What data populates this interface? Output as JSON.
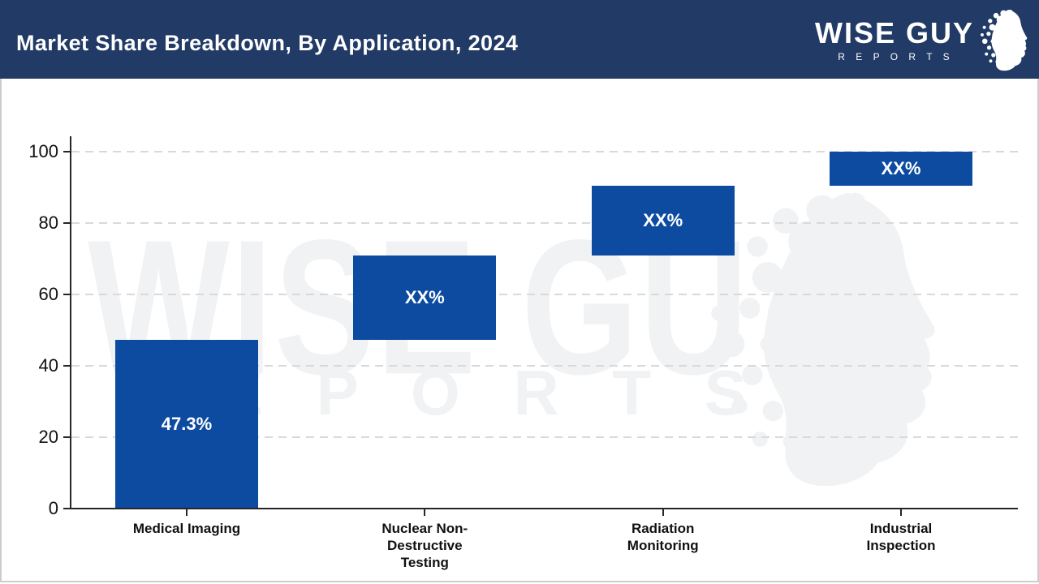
{
  "header": {
    "title": "Market Share Breakdown, By Application, 2024",
    "logo": {
      "wordmark": "WISE GUY",
      "subtitle": "R E P O R T S"
    }
  },
  "watermark": {
    "line1": "WISE GU",
    "line2": "R E P O R T S"
  },
  "colors": {
    "header_bg": "#213a66",
    "bar_blue": "#0d4ba0",
    "bar_label_white": "#ffffff",
    "grid_gray": "#d9d9d9",
    "axis_black": "#262626",
    "tick_text_black": "#111111",
    "watermark_gray": "#f1f2f4"
  },
  "chart_data": {
    "type": "bar",
    "subtype": "waterfall",
    "title": "Market Share Breakdown, By Application, 2024",
    "categories": [
      "Medical Imaging",
      "Nuclear Non-Destructive Testing",
      "Radiation Monitoring",
      "Industrial Inspection"
    ],
    "category_lines": [
      [
        "Medical Imaging"
      ],
      [
        "Nuclear Non-",
        "Destructive",
        "Testing"
      ],
      [
        "Radiation",
        "Monitoring"
      ],
      [
        "Industrial",
        "Inspection"
      ]
    ],
    "series": [
      {
        "name": "Market Share (%)",
        "segments": [
          {
            "category": "Medical Imaging",
            "base": 0,
            "top": 47.3,
            "label": "47.3%"
          },
          {
            "category": "Nuclear Non-Destructive Testing",
            "base": 47.3,
            "top": 71,
            "label": "XX%"
          },
          {
            "category": "Radiation Monitoring",
            "base": 71,
            "top": 90.5,
            "label": "XX%"
          },
          {
            "category": "Industrial Inspection",
            "base": 90.5,
            "top": 100,
            "label": "XX%"
          }
        ]
      }
    ],
    "ylim": [
      0,
      100
    ],
    "yticks": [
      0,
      20,
      40,
      60,
      80,
      100
    ],
    "xlabel": "",
    "ylabel": "",
    "grid": "horizontal-dashed",
    "legend": "none"
  }
}
